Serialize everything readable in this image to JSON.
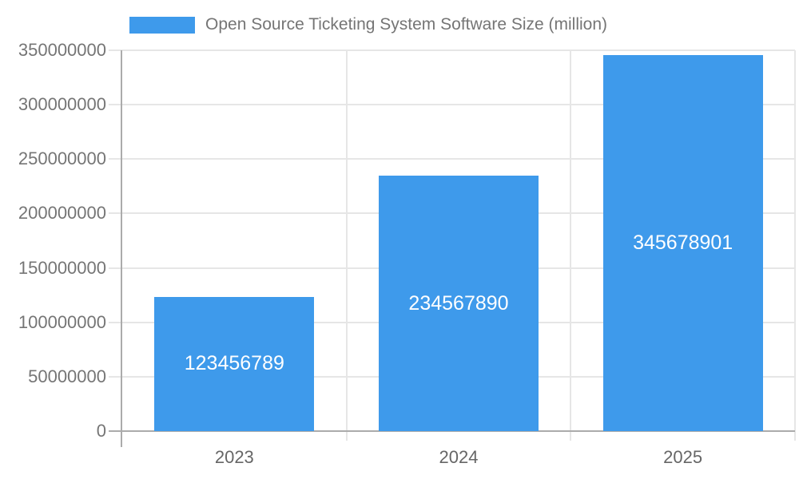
{
  "chart_data": {
    "type": "bar",
    "title": "Open Source Ticketing System Software Size (million)",
    "categories": [
      "2023",
      "2024",
      "2025"
    ],
    "values": [
      123456789,
      234567890,
      345678901
    ],
    "value_labels": [
      "123456789",
      "234567890",
      "345678901"
    ],
    "xlabel": "",
    "ylabel": "",
    "ylim": [
      0,
      350000000
    ],
    "y_ticks": [
      0,
      50000000,
      100000000,
      150000000,
      200000000,
      250000000,
      300000000,
      350000000
    ],
    "y_tick_labels": [
      "0",
      "50000000",
      "100000000",
      "150000000",
      "200000000",
      "250000000",
      "300000000",
      "350000000"
    ],
    "grid": true,
    "legend_position": "top",
    "colors": {
      "bar": "#3E9AEB",
      "value_label": "#FFFFFF",
      "y_tick_label": "#757575",
      "x_tick_label": "#666666",
      "legend_label": "#757575",
      "gridline": "#E6E6E6",
      "axis_line": "#ABABAB",
      "background": "#FFFFFF"
    }
  }
}
